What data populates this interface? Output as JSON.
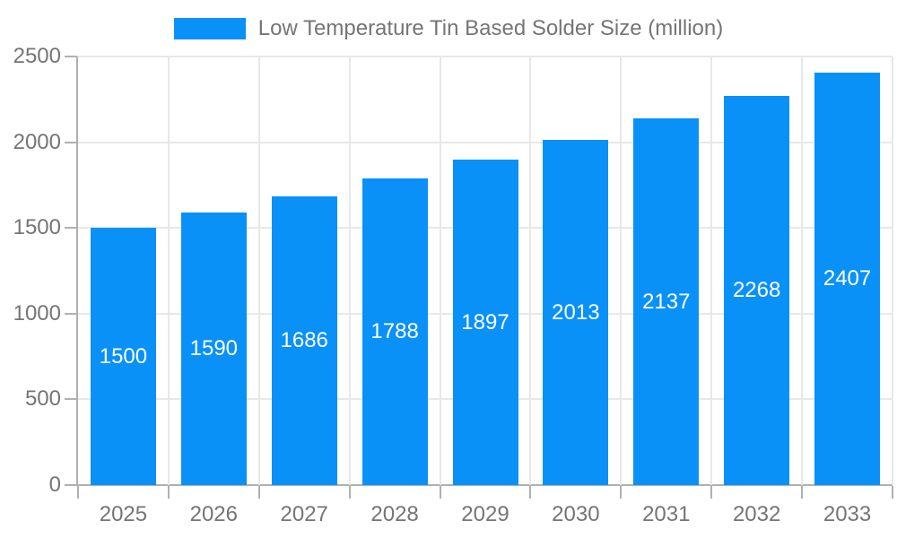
{
  "chart_data": {
    "type": "bar",
    "title": "Low Temperature Tin Based Solder Size (million)",
    "categories": [
      "2025",
      "2026",
      "2027",
      "2028",
      "2029",
      "2030",
      "2031",
      "2032",
      "2033"
    ],
    "values": [
      1500,
      1590,
      1686,
      1788,
      1897,
      2013,
      2137,
      2268,
      2407
    ],
    "ylim": [
      0,
      2500
    ],
    "yticks": [
      0,
      500,
      1000,
      1500,
      2000,
      2500
    ],
    "grid": true,
    "legend_position": "top",
    "colors": {
      "bar": "#0991f7",
      "bar_value_text": "#ffffff",
      "axis_line": "#b0b0b0",
      "gridline": "#e8e8e8",
      "tick_label": "#757575",
      "legend_text": "#757575"
    }
  }
}
